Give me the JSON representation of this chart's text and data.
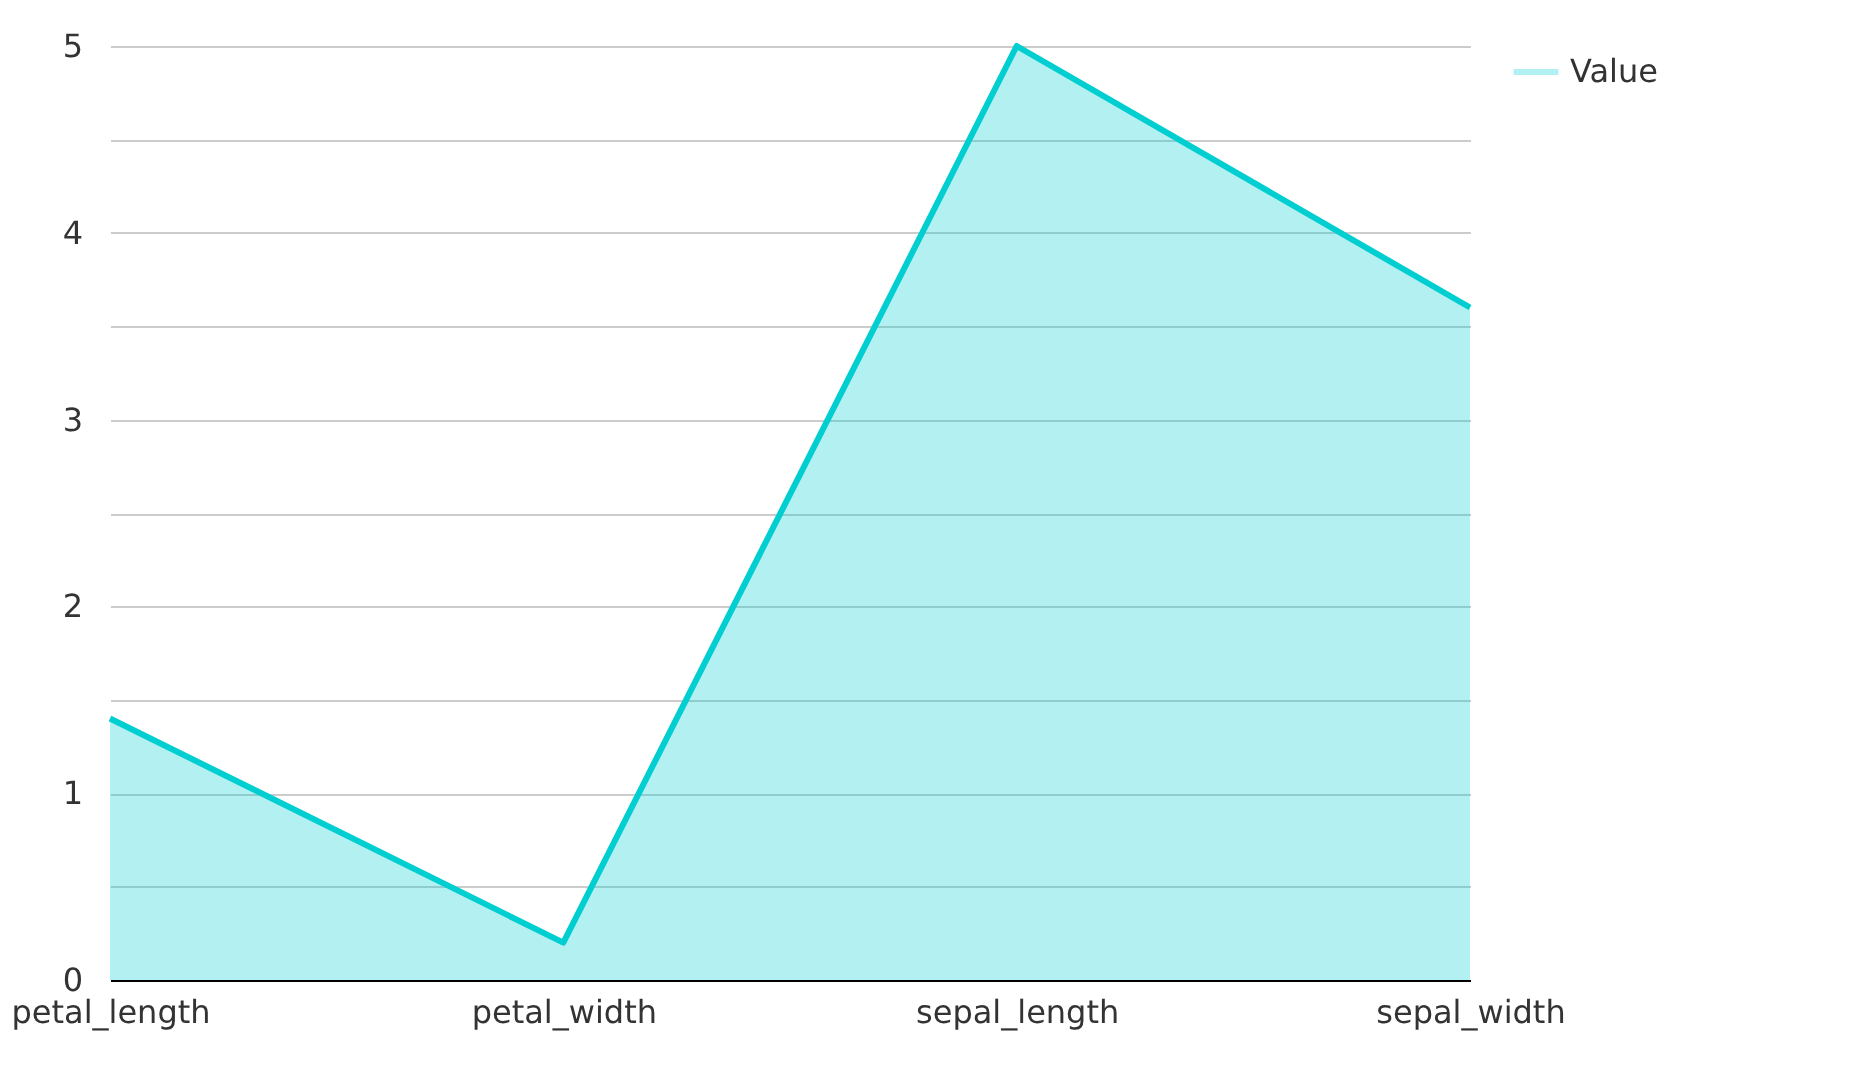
{
  "chart_data": {
    "type": "area",
    "categories": [
      "petal_length",
      "petal_width",
      "sepal_length",
      "sepal_width"
    ],
    "series": [
      {
        "name": "Value",
        "color": "#00ced1",
        "values": [
          1.4,
          0.2,
          5.0,
          3.6
        ]
      }
    ],
    "ylim": [
      0,
      5
    ],
    "yticks": [
      0,
      {
        "value": 0.5,
        "label": null
      },
      1,
      {
        "value": 1.5,
        "label": null
      },
      2,
      {
        "value": 2.5,
        "label": null
      },
      3,
      {
        "value": 3.5,
        "label": null
      },
      4,
      {
        "value": 4.5,
        "label": null
      },
      5
    ],
    "grid": "y",
    "legend": "top right"
  }
}
